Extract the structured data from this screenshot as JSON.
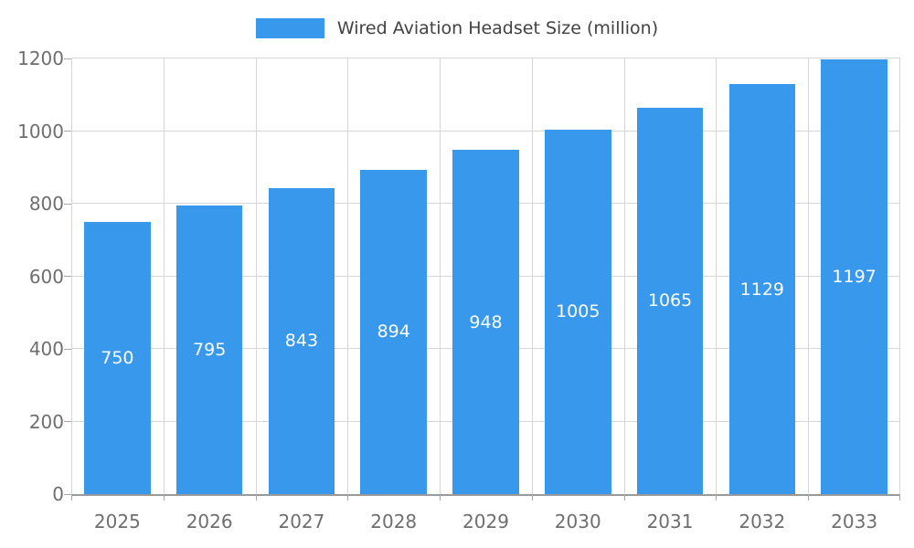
{
  "colors": {
    "bar": "#3898EC",
    "bar_label": "#FFFFFF",
    "gridline": "#D6D6D6",
    "axis_line": "#9A9A9A",
    "axis_text": "#6E6E6E",
    "legend_text": "#424242"
  },
  "chart_data": {
    "type": "bar",
    "title": "Wired Aviation Headset Size (million)",
    "categories": [
      "2025",
      "2026",
      "2027",
      "2028",
      "2029",
      "2030",
      "2031",
      "2032",
      "2033"
    ],
    "values": [
      750,
      795,
      843,
      894,
      948,
      1005,
      1065,
      1129,
      1197
    ],
    "xlabel": "",
    "ylabel": "",
    "ylim": [
      0,
      1200
    ],
    "ytick_step": 200,
    "grid": true,
    "legend_position": "top",
    "bar_labels_inside": true
  }
}
